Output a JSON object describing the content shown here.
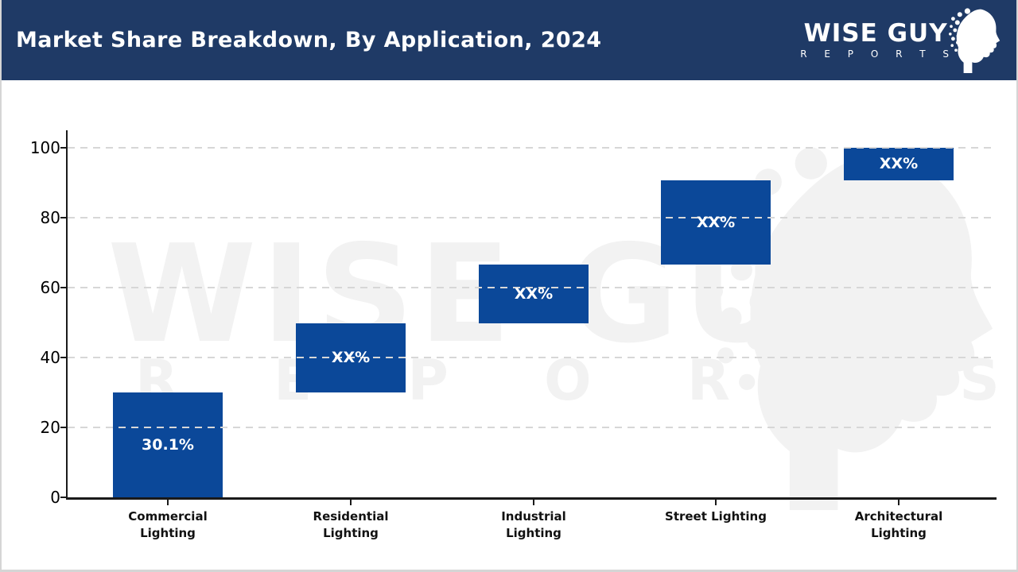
{
  "header": {
    "title": "Market Share Breakdown, By Application, 2024",
    "logo": {
      "line1": "WISE GUY",
      "line2": "R E P O R T S"
    }
  },
  "watermark": {
    "line1": "WISE GUY",
    "line2": "R E P O R T S"
  },
  "colors": {
    "header_bg": "#1F3A66",
    "bar": "#0B4899",
    "bar_label": "#FFFFFF",
    "gridline": "#D7D7D7",
    "axis": "#1A1A1A",
    "watermark": "#F2F2F2",
    "frame_border": "#D5D5D5"
  },
  "chart_data": {
    "type": "bar",
    "subtype": "waterfall",
    "title": "Market Share Breakdown, By Application, 2024",
    "categories": [
      "Commercial Lighting",
      "Residential Lighting",
      "Industrial Lighting",
      "Street Lighting",
      "Architectural Lighting"
    ],
    "category_lines": [
      [
        "Commercial",
        "Lighting"
      ],
      [
        "Residential",
        "Lighting"
      ],
      [
        "Industrial",
        "Lighting"
      ],
      [
        "Street Lighting"
      ],
      [
        "Architectural",
        "Lighting"
      ]
    ],
    "segments": [
      {
        "category": "Commercial Lighting",
        "start": 0,
        "end": 30.1,
        "label": "30.1%"
      },
      {
        "category": "Residential Lighting",
        "start": 30.1,
        "end": 49.8,
        "label": "XX%"
      },
      {
        "category": "Industrial Lighting",
        "start": 49.8,
        "end": 66.6,
        "label": "XX%"
      },
      {
        "category": "Street Lighting",
        "start": 66.6,
        "end": 90.7,
        "label": "XX%"
      },
      {
        "category": "Architectural Lighting",
        "start": 90.7,
        "end": 100,
        "label": "XX%"
      }
    ],
    "ylim": [
      0,
      100
    ],
    "yticks": [
      0,
      20,
      40,
      60,
      80,
      100
    ],
    "grid": "dashed-horizontal",
    "legend": "none"
  }
}
